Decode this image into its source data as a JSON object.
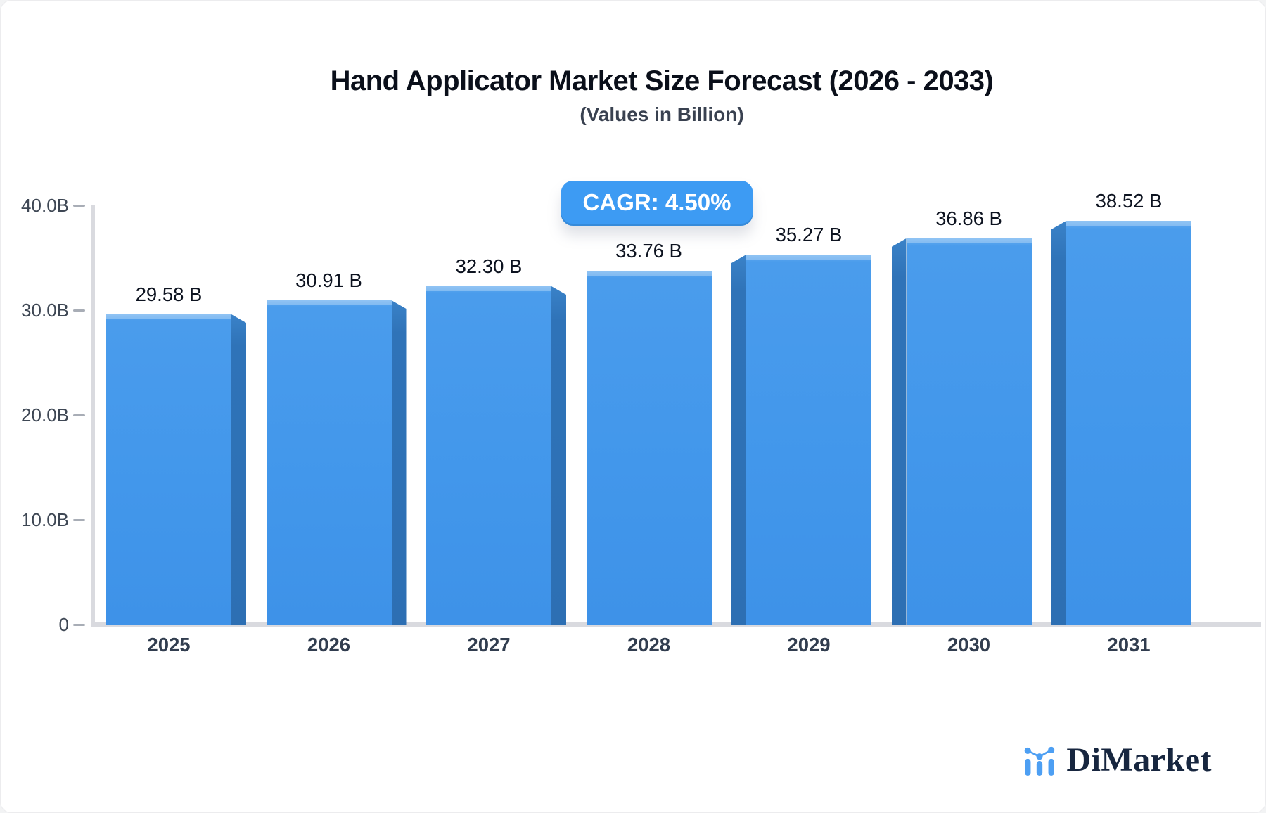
{
  "header": {
    "title": "Hand Applicator Market Size Forecast (2026 - 2033)",
    "subtitle": "(Values in Billion)"
  },
  "badge": {
    "label": "CAGR: 4.50%",
    "color": "#3d9bf3"
  },
  "brand": {
    "name": "DiMarket",
    "icon": "mini-bar-line-chart-icon",
    "icon_color": "#4d9ff3",
    "text_color": "#17263f"
  },
  "chart_data": {
    "type": "bar",
    "title": "Hand Applicator Market Size Forecast (2026 - 2033)",
    "subtitle": "(Values in Billion)",
    "cagr": "4.50%",
    "categories": [
      "2025",
      "2026",
      "2027",
      "2028",
      "2029",
      "2030",
      "2031"
    ],
    "values": [
      29.58,
      30.91,
      32.3,
      33.76,
      35.27,
      36.86,
      38.52
    ],
    "value_labels": [
      "29.58 B",
      "30.91 B",
      "32.30 B",
      "33.76 B",
      "35.27 B",
      "36.86 B",
      "38.52 B"
    ],
    "xlabel": "",
    "ylabel": "",
    "ylim": [
      0,
      40
    ],
    "yticks": [
      {
        "label": "40.0B",
        "value": 40
      },
      {
        "label": "30.0B",
        "value": 30
      },
      {
        "label": "20.0B",
        "value": 20
      },
      {
        "label": "10.0B",
        "value": 10
      },
      {
        "label": "0",
        "value": 0
      }
    ],
    "grid": false,
    "legend": "none",
    "bar_style": "3d-bevel",
    "bar_color": "#4297eb",
    "bar_side_color": "#2f73b8",
    "axis_color": "#d9dadf"
  }
}
